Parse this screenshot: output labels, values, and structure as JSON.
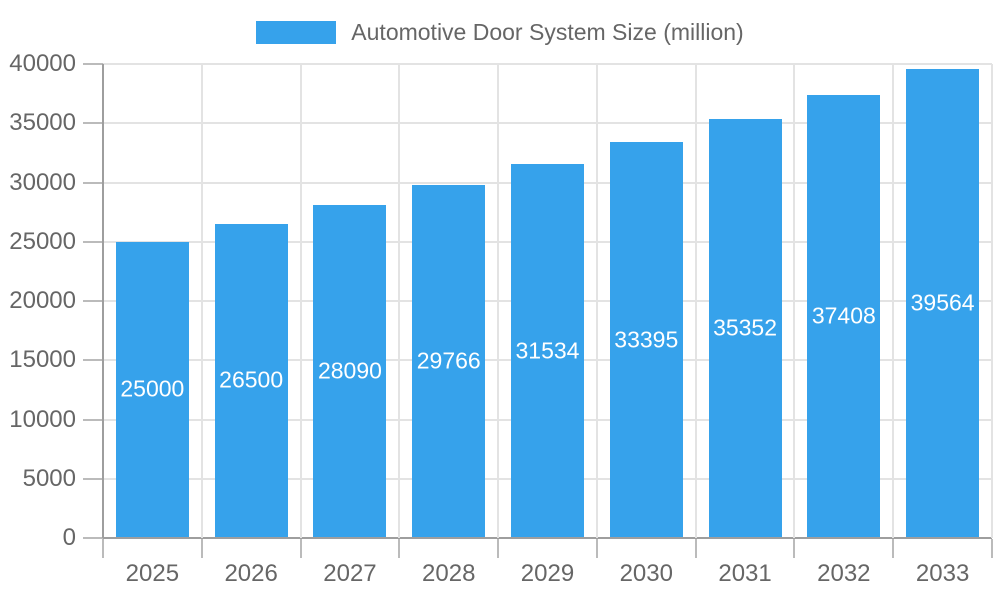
{
  "chart_data": {
    "type": "bar",
    "title": "Automotive Door System Size (million)",
    "legend_position": "top",
    "grid": true,
    "categories": [
      "2025",
      "2026",
      "2027",
      "2028",
      "2029",
      "2030",
      "2031",
      "2032",
      "2033"
    ],
    "values": [
      25000,
      26500,
      28090,
      29766,
      31534,
      33395,
      35352,
      37408,
      39564
    ],
    "value_labels": [
      "25000",
      "26500",
      "28090",
      "29766",
      "31534",
      "33395",
      "35352",
      "37408",
      "39564"
    ],
    "xlabel": "",
    "ylabel": "",
    "ylim": [
      0,
      40000
    ],
    "ytick_step": 5000,
    "ytick_labels": [
      "0",
      "5000",
      "10000",
      "15000",
      "20000",
      "25000",
      "30000",
      "35000",
      "40000"
    ],
    "colors": {
      "bar": "#36A2EB",
      "value_label": "#FFFFFF",
      "axis_text": "#666666",
      "gridline": "#E3E3E3",
      "axis_line": "#9E9E9E",
      "tick": "#BBBBBB",
      "background": "#FFFFFF"
    }
  }
}
